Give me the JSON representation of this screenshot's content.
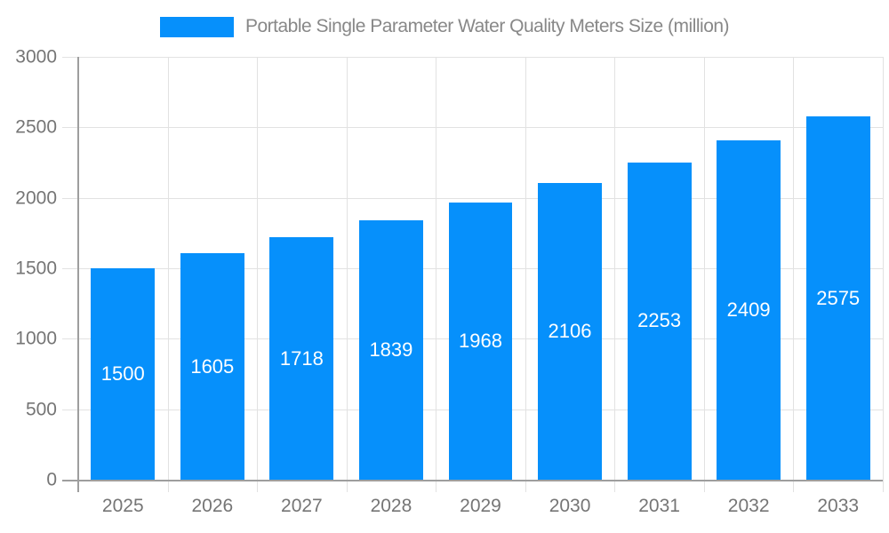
{
  "chart_data": {
    "type": "bar",
    "title": "Portable Single Parameter Water Quality Meters Size (million)",
    "categories": [
      "2025",
      "2026",
      "2027",
      "2028",
      "2029",
      "2030",
      "2031",
      "2032",
      "2033"
    ],
    "values": [
      1500,
      1605,
      1718,
      1839,
      1968,
      2106,
      2253,
      2409,
      2575
    ],
    "xlabel": "",
    "ylabel": "",
    "ylim": [
      0,
      3000
    ],
    "yticks": [
      0,
      500,
      1000,
      1500,
      2000,
      2500,
      3000
    ],
    "grid": true,
    "legend_position": "top",
    "bar_fraction": 0.715,
    "value_labels_inside": "center"
  },
  "colors": {
    "bar": "#0690fb",
    "bar_label": "#ffffff",
    "grid": "#e2e2e2",
    "axis": "#9e9e9e",
    "tick_text": "#757575",
    "legend_text": "#888888",
    "background": "#ffffff"
  }
}
